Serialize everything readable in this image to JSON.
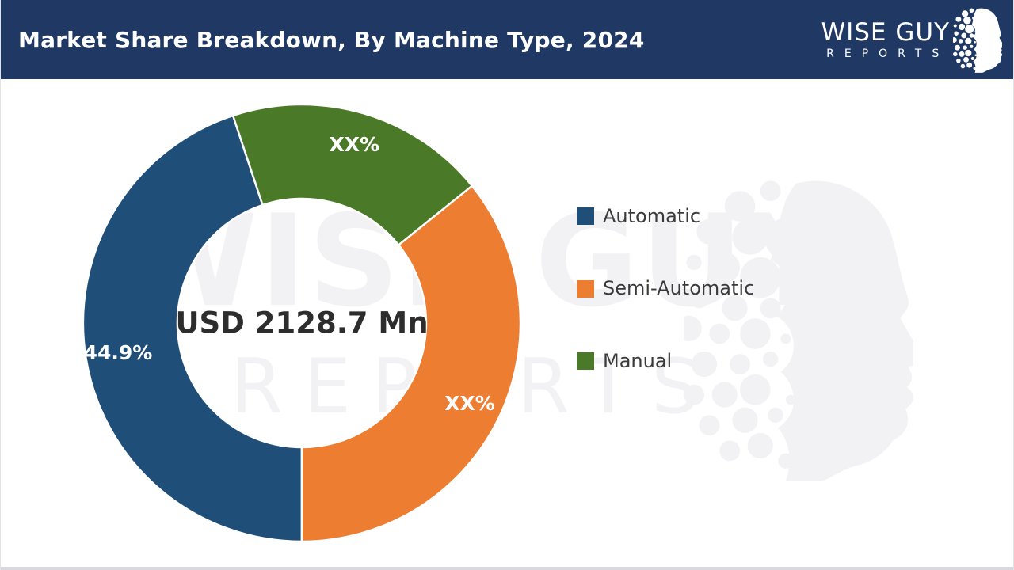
{
  "header": {
    "title": "Market Share Breakdown, By Machine Type, 2024",
    "logo": {
      "wordmark": "WISE GUY",
      "subtext": "REPORTS"
    }
  },
  "watermark": {
    "wordmark": "WISE GUY",
    "subtext": "REPORTS"
  },
  "chart_data": {
    "type": "pie",
    "subtype": "donut",
    "title": "Market Share Breakdown, By Machine Type, 2024",
    "center_label": "USD 2128.7 Mn",
    "categories": [
      "Automatic",
      "Semi-Automatic",
      "Manual"
    ],
    "slices": [
      {
        "label": "Automatic",
        "display_value": "44.9%",
        "value_pct_est": 44.9,
        "color": "#1F4E79"
      },
      {
        "label": "Semi-Automatic",
        "display_value": "XX%",
        "value_pct_est": 35.8,
        "color": "#ED7D31"
      },
      {
        "label": "Manual",
        "display_value": "XX%",
        "value_pct_est": 19.3,
        "color": "#4A7A28"
      }
    ],
    "layout": {
      "start_angle_deg": 180,
      "direction": "clockwise",
      "draw_order": [
        0,
        2,
        1
      ],
      "hole_ratio": 0.57,
      "legend_position": "right",
      "labels": "inside"
    }
  },
  "colors": {
    "header_bg": "#1F3864",
    "header_text": "#FFFFFF",
    "watermark": "#F2F2F4",
    "center_text": "#2D2D2D",
    "legend_text": "#3A3A3A",
    "footer_bar": "#D9D9DD",
    "slice_label_text": "#FFFFFF"
  }
}
